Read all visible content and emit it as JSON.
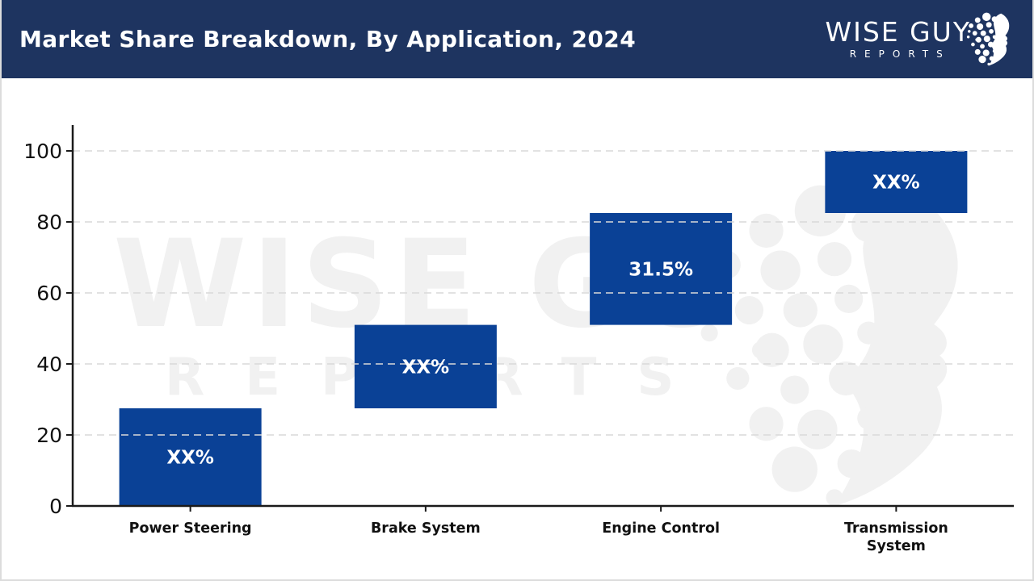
{
  "header": {
    "title": "Market Share Breakdown, By Application, 2024",
    "logo": {
      "line1": "WISE GUY",
      "line2": "REPORTS"
    }
  },
  "watermark": {
    "line1": "WISE GU",
    "line2": "REPORTS"
  },
  "colors": {
    "header_bg": "#1e3460",
    "bar": "#0a4196",
    "bar_label": "#ffffff",
    "axis": "#1a1a1a",
    "grid": "#d9d9d9",
    "watermark": "#f1f1f1",
    "border": "#dcdcdc",
    "tick_text": "#111111"
  },
  "chart_data": {
    "type": "bar",
    "subtype": "waterfall",
    "title": "Market Share Breakdown, By Application, 2024",
    "categories": [
      "Power Steering",
      "Brake System",
      "Engine Control",
      "Transmission System"
    ],
    "segments": [
      {
        "category": "Power Steering",
        "start": 0,
        "end": 27.5,
        "value": 27.5,
        "label": "XX%"
      },
      {
        "category": "Brake System",
        "start": 27.5,
        "end": 51,
        "value": 23.5,
        "label": "XX%"
      },
      {
        "category": "Engine Control",
        "start": 51,
        "end": 82.5,
        "value": 31.5,
        "label": "31.5%"
      },
      {
        "category": "Transmission System",
        "start": 82.5,
        "end": 100,
        "value": 17.5,
        "label": "XX%"
      }
    ],
    "yticks": [
      0,
      20,
      40,
      60,
      80,
      100
    ],
    "ylim": [
      0,
      107
    ],
    "xlabel": "",
    "ylabel": "",
    "grid": "dashed-horizontal",
    "legend": "none"
  }
}
